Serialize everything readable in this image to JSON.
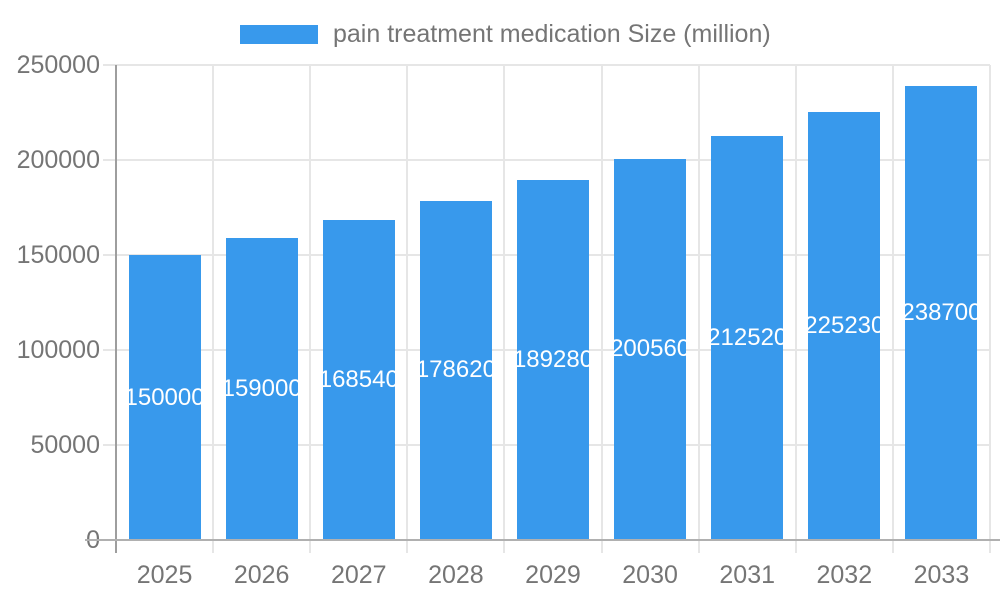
{
  "legend": {
    "label": "pain treatment medication Size (million)",
    "swatch_color": "#3899ec",
    "position": "top"
  },
  "colors": {
    "bar": "#3899ec",
    "bar_value_text": "#ffffff",
    "axis_text": "#757575",
    "gridline": "#e6e6e6",
    "axis_line": "#b0b0b0",
    "y_axis_line": "#9e9e9e",
    "background": "#ffffff"
  },
  "chart_data": {
    "type": "bar",
    "title": "",
    "xlabel": "",
    "ylabel": "",
    "categories": [
      "2025",
      "2026",
      "2027",
      "2028",
      "2029",
      "2030",
      "2031",
      "2032",
      "2033"
    ],
    "series": [
      {
        "name": "pain treatment medication Size (million)",
        "values": [
          150000,
          159000,
          168540,
          178620,
          189280,
          200560,
          212520,
          225230,
          238700
        ]
      }
    ],
    "value_labels": [
      "150000",
      "159000",
      "168540",
      "178620",
      "189280",
      "200560",
      "212520",
      "225230",
      "238700"
    ],
    "value_label_position": "inside-center",
    "ylim": [
      0,
      250000
    ],
    "ytick_interval": 50000,
    "ytick_labels": [
      "0",
      "50000",
      "100000",
      "150000",
      "200000",
      "250000"
    ],
    "grid": true,
    "legend_position": "top"
  }
}
